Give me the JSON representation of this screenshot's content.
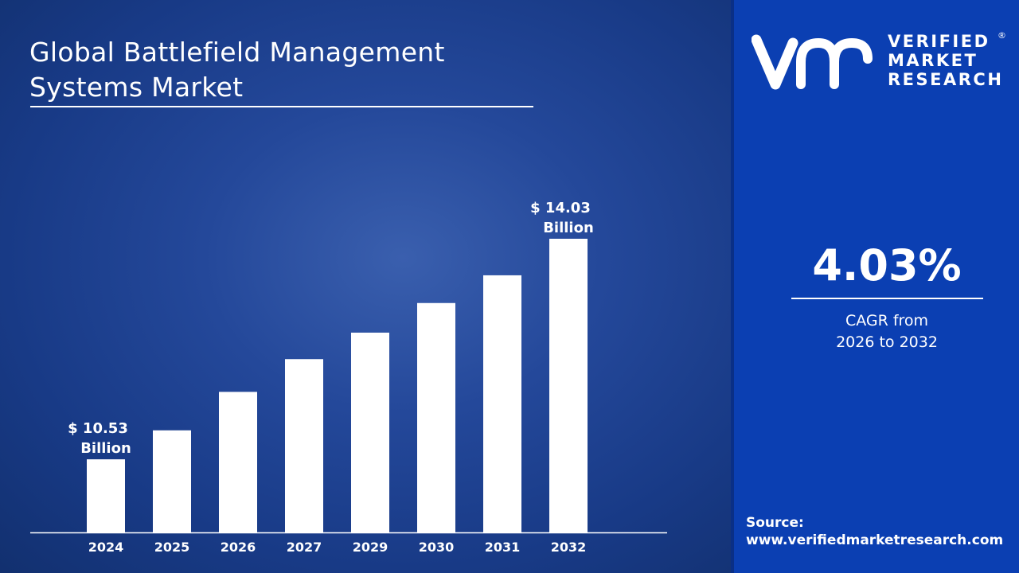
{
  "title_line1": "Global Battlefield Management",
  "title_line2": "Systems Market",
  "brand": {
    "line1": "VERIFIED",
    "line2": "MARKET",
    "line3": "RESEARCH",
    "mark": "vmr",
    "registered": "®"
  },
  "cagr": {
    "value": "4.03%",
    "label_line1": "CAGR from",
    "label_line2": "2026 to 2032"
  },
  "source": {
    "label": "Source:",
    "url": "www.verifiedmarketresearch.com"
  },
  "colors": {
    "left_bg": "#1a3a86",
    "right_bg": "#0b3fb2",
    "bars": "#ffffff",
    "text": "#ffffff"
  },
  "chart_data": {
    "type": "bar",
    "categories": [
      "2024",
      "2025",
      "2026",
      "2027",
      "2029",
      "2030",
      "2031",
      "2032"
    ],
    "values": [
      10.53,
      10.99,
      11.6,
      12.12,
      12.54,
      13.01,
      13.45,
      14.03
    ],
    "unit": "USD Billion",
    "ylim": [
      9.37,
      14.7
    ],
    "grid": false,
    "data_labels": [
      {
        "category": "2024",
        "line1": "$ 10.53",
        "line2": "Billion"
      },
      {
        "category": "2032",
        "line1": "$ 14.03",
        "line2": "Billion"
      }
    ]
  }
}
